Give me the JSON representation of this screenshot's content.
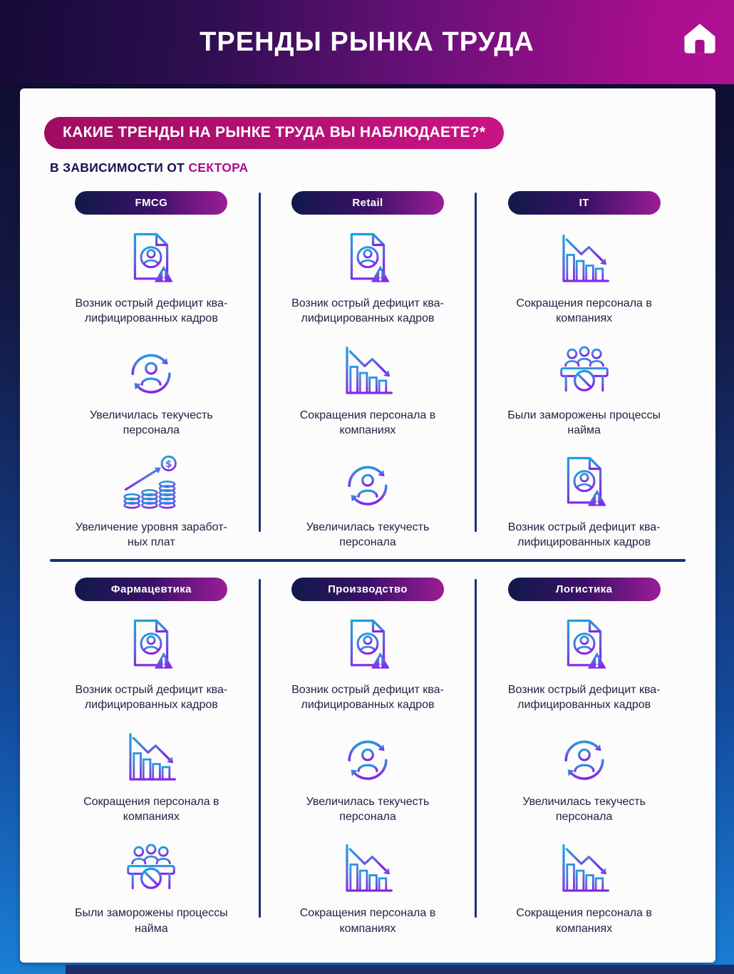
{
  "header": {
    "title": "ТРЕНДЫ РЫНКА ТРУДА"
  },
  "question": {
    "text": "КАКИЕ ТРЕНДЫ НА РЫНКЕ ТРУДА ВЫ НАБЛЮДАЕТЕ?*",
    "subtitle_prefix": "В ЗАВИСИМОСТИ ОТ ",
    "subtitle_highlight": "СЕКТОРА"
  },
  "colors": {
    "accent_magenta": "#c01480",
    "dark_navy": "#1c2f73",
    "icon_gradient_start": "#1ba3de",
    "icon_gradient_end": "#8328e8"
  },
  "icons_legend": {
    "doc-person-alert": "document with person portrait and warning sign",
    "staff-turnover": "circular arrows around person",
    "salary-growth": "coin stacks with rising arrow and dollar coin",
    "decline-chart": "bar chart with declining arrow",
    "hiring-freeze": "people behind barrier with prohibition sign"
  },
  "sectors": [
    {
      "name": "FMCG",
      "items": [
        {
          "icon": "doc-person-alert",
          "label": "Возник острый дефицит ква-\nлифицированных кадров"
        },
        {
          "icon": "staff-turnover",
          "label": "Увеличилась текучесть\nперсонала"
        },
        {
          "icon": "salary-growth",
          "label": "Увеличение уровня заработ-\nных плат"
        }
      ]
    },
    {
      "name": "Retail",
      "items": [
        {
          "icon": "doc-person-alert",
          "label": "Возник острый дефицит ква-\nлифицированных кадров"
        },
        {
          "icon": "decline-chart",
          "label": "Сокращения персонала в\nкомпаниях"
        },
        {
          "icon": "staff-turnover",
          "label": "Увеличилась текучесть\nперсонала"
        }
      ]
    },
    {
      "name": "IT",
      "items": [
        {
          "icon": "decline-chart",
          "label": "Сокращения персонала в\nкомпаниях"
        },
        {
          "icon": "hiring-freeze",
          "label": "Были заморожены процессы\nнайма"
        },
        {
          "icon": "doc-person-alert",
          "label": "Возник острый дефицит ква-\nлифицированных кадров"
        }
      ]
    },
    {
      "name": "Фармацевтика",
      "items": [
        {
          "icon": "doc-person-alert",
          "label": "Возник острый дефицит ква-\nлифицированных кадров"
        },
        {
          "icon": "decline-chart",
          "label": "Сокращения персонала в\nкомпаниях"
        },
        {
          "icon": "hiring-freeze",
          "label": "Были заморожены процессы\nнайма"
        }
      ]
    },
    {
      "name": "Производство",
      "items": [
        {
          "icon": "doc-person-alert",
          "label": "Возник острый дефицит ква-\nлифицированных кадров"
        },
        {
          "icon": "staff-turnover",
          "label": "Увеличилась текучесть\nперсонала"
        },
        {
          "icon": "decline-chart",
          "label": "Сокращения персонала в\nкомпаниях"
        }
      ]
    },
    {
      "name": "Логистика",
      "items": [
        {
          "icon": "doc-person-alert",
          "label": "Возник острый дефицит ква-\nлифицированных кадров"
        },
        {
          "icon": "staff-turnover",
          "label": "Увеличилась текучесть\nперсонала"
        },
        {
          "icon": "decline-chart",
          "label": "Сокращения персонала в\nкомпаниях"
        }
      ]
    }
  ]
}
